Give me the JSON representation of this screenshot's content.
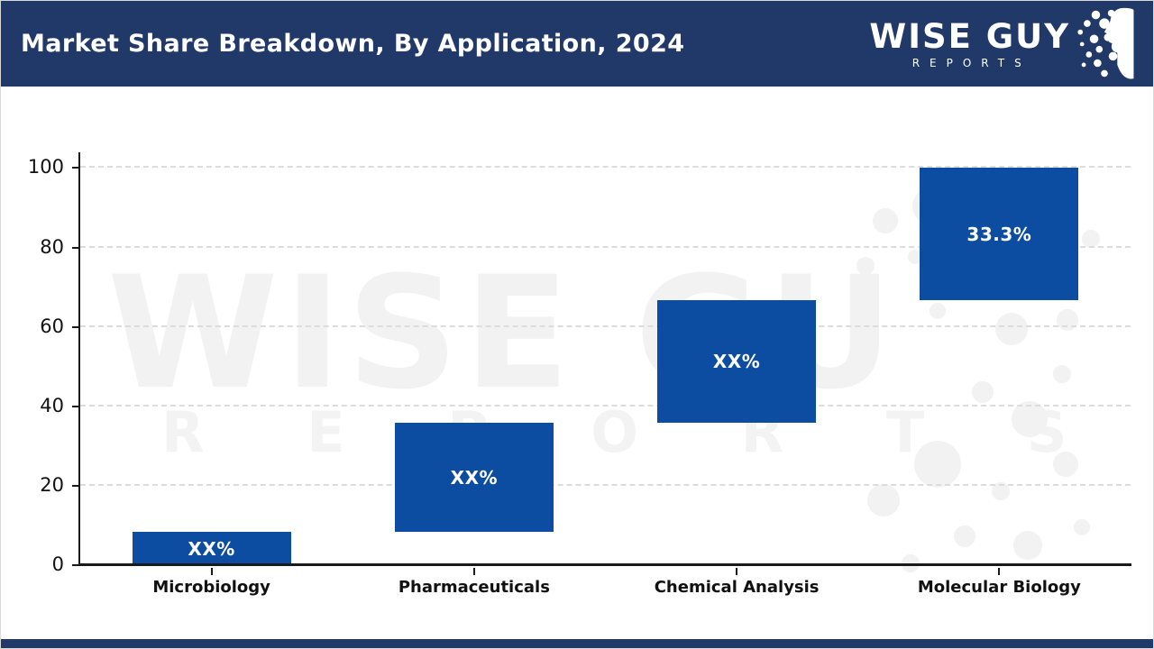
{
  "header": {
    "title": "Market Share Breakdown, By Application, 2024",
    "background": "#213968",
    "logo": {
      "line1": "WISE GUY",
      "line2": "REPORTS"
    }
  },
  "watermark": {
    "line1": "WISE GU",
    "line2": "R E P O R T S"
  },
  "chart_data": {
    "type": "bar",
    "subtype": "floating-segment-breakdown",
    "title": "Market Share Breakdown, By Application, 2024",
    "xlabel": "",
    "ylabel": "",
    "categories": [
      "Microbiology",
      "Pharmaceuticals",
      "Chemical Analysis",
      "Molecular Biology"
    ],
    "segments": [
      {
        "category": "Microbiology",
        "start": 0,
        "end": 8.3,
        "label": "XX%"
      },
      {
        "category": "Pharmaceuticals",
        "start": 8.3,
        "end": 35.9,
        "label": "XX%"
      },
      {
        "category": "Chemical Analysis",
        "start": 35.9,
        "end": 66.7,
        "label": "XX%"
      },
      {
        "category": "Molecular Biology",
        "start": 66.7,
        "end": 100,
        "label": "33.3%"
      }
    ],
    "values": [
      8.3,
      27.6,
      30.8,
      33.3
    ],
    "yticks": [
      0,
      20,
      40,
      60,
      80,
      100
    ],
    "ylim": [
      0,
      103.5
    ],
    "grid": "horizontal-dashed",
    "legend": "none",
    "bar_color": "#0d4da1",
    "bar_label_color": "#ffffff"
  },
  "colors": {
    "header_bg": "#213968",
    "footer_bg": "#213968",
    "bar": "#0d4da1",
    "grid": "#dcdcdc",
    "axis": "#1a1a1a",
    "tick_text": "#111111",
    "watermark": "#f2f2f3",
    "title_text": "#ffffff"
  }
}
